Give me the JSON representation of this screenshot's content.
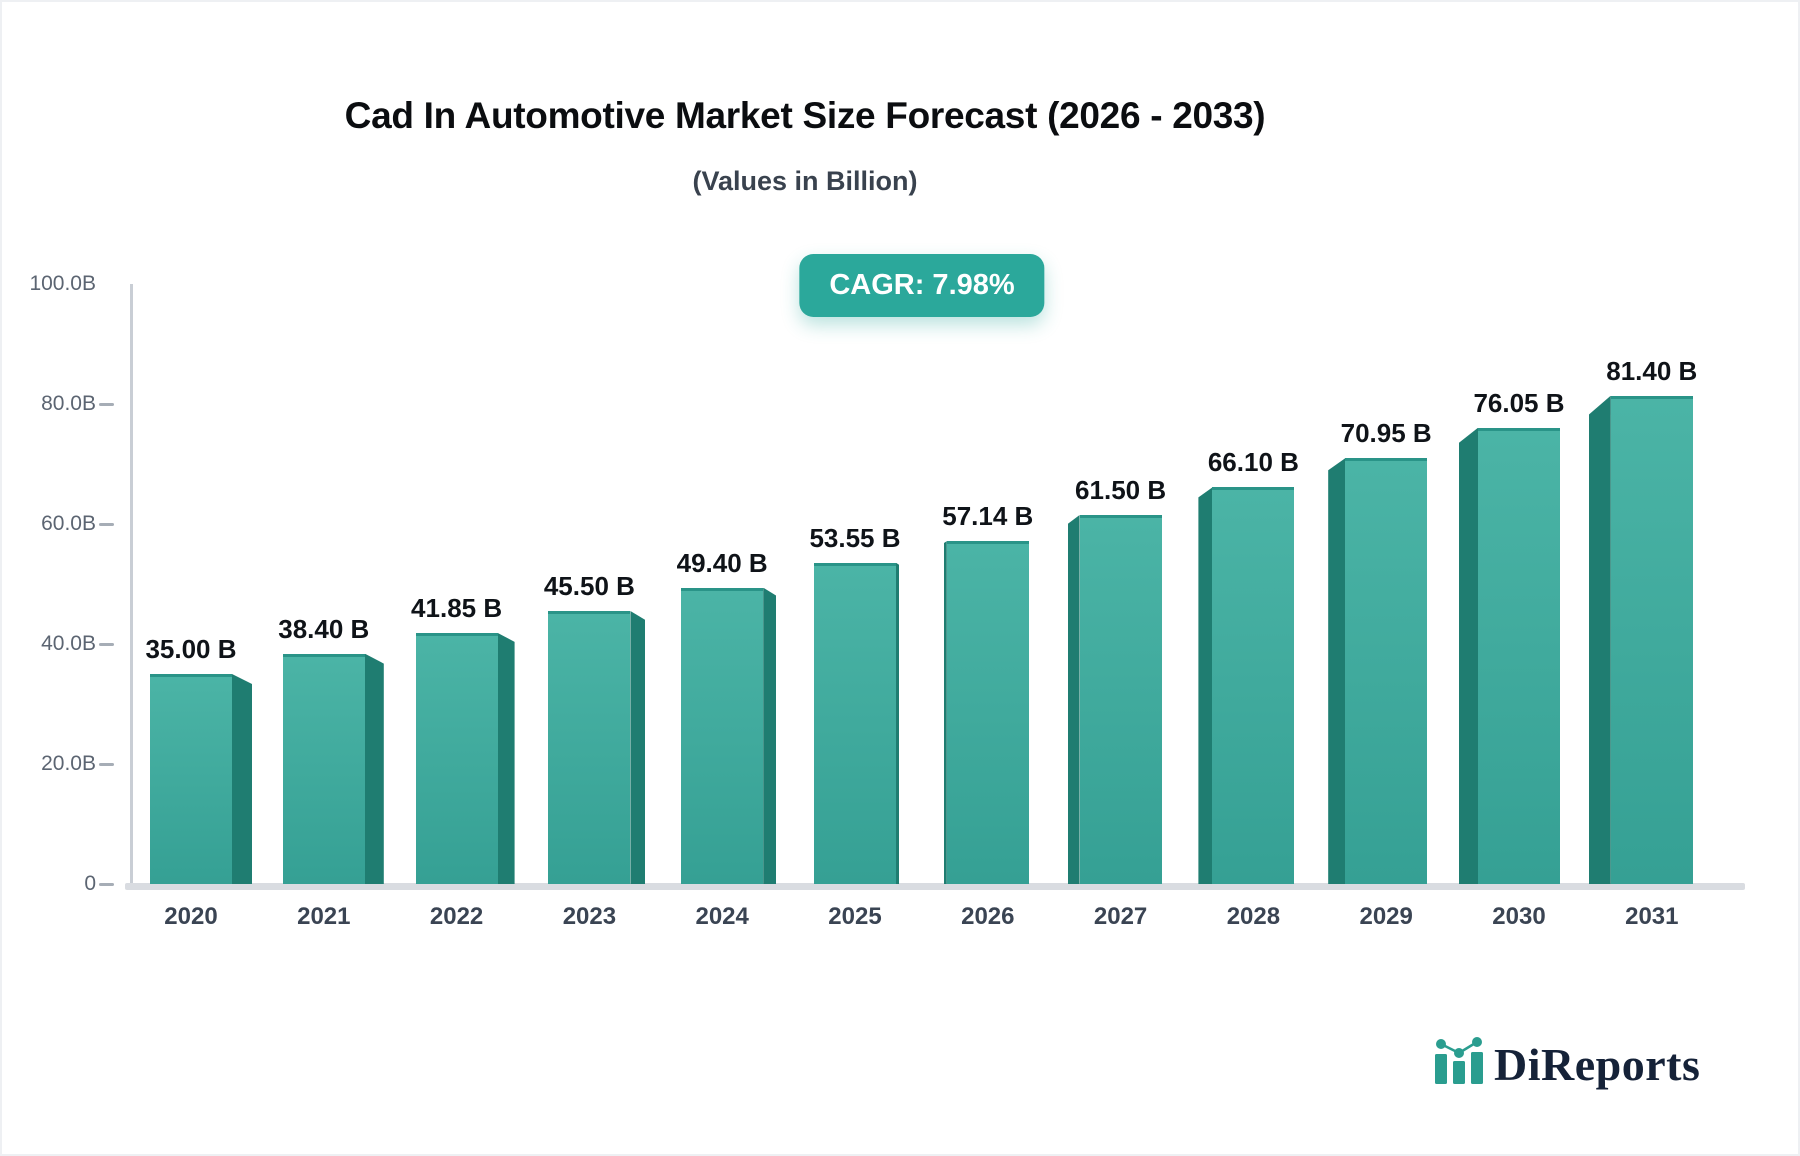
{
  "header": {
    "title": "Cad In Automotive Market Size Forecast (2026 - 2033)",
    "subtitle": "(Values in Billion)",
    "cagr_badge": "CAGR: 7.98%"
  },
  "brand": {
    "name": "DiReports"
  },
  "colors": {
    "bar_face_top": "#4bb4a6",
    "bar_face_bottom": "#35a094",
    "bar_side": "#1f7d71",
    "bar_top_edge": "#2a9488",
    "badge_bg": "#2ba89b",
    "axis_line": "#c9ced5",
    "baseline": "#d9dce1",
    "tick_text": "#5c6572",
    "year_text": "#3a4453",
    "value_text": "#0f1318",
    "logo_navy": "#152238",
    "logo_teal": "#2a9d8f"
  },
  "chart_data": {
    "type": "bar",
    "title": "Cad In Automotive Market Size Forecast (2026 - 2033)",
    "subtitle": "(Values in Billion)",
    "cagr_percent": 7.98,
    "categories": [
      "2020",
      "2021",
      "2022",
      "2023",
      "2024",
      "2025",
      "2026",
      "2027",
      "2028",
      "2029",
      "2030",
      "2031"
    ],
    "values": [
      35.0,
      38.4,
      41.85,
      45.5,
      49.4,
      53.55,
      57.14,
      61.5,
      66.1,
      70.95,
      76.05,
      81.4
    ],
    "bar_labels": [
      "35.00 B",
      "38.40 B",
      "41.85 B",
      "45.50 B",
      "49.40 B",
      "53.55 B",
      "57.14 B",
      "61.50 B",
      "66.10 B",
      "70.95 B",
      "76.05 B",
      "81.40 B"
    ],
    "ylabel": "",
    "xlabel": "",
    "ylim": [
      0,
      100
    ],
    "y_ticks": [
      {
        "label": "100.0B",
        "value": 100
      },
      {
        "label": "80.0B",
        "value": 80
      },
      {
        "label": "60.0B",
        "value": 60
      },
      {
        "label": "40.0B",
        "value": 40
      },
      {
        "label": "20.0B",
        "value": 20
      },
      {
        "label": "0",
        "value": 0
      }
    ],
    "grid": false,
    "legend": "none",
    "bar_style": "3d-perspective"
  }
}
